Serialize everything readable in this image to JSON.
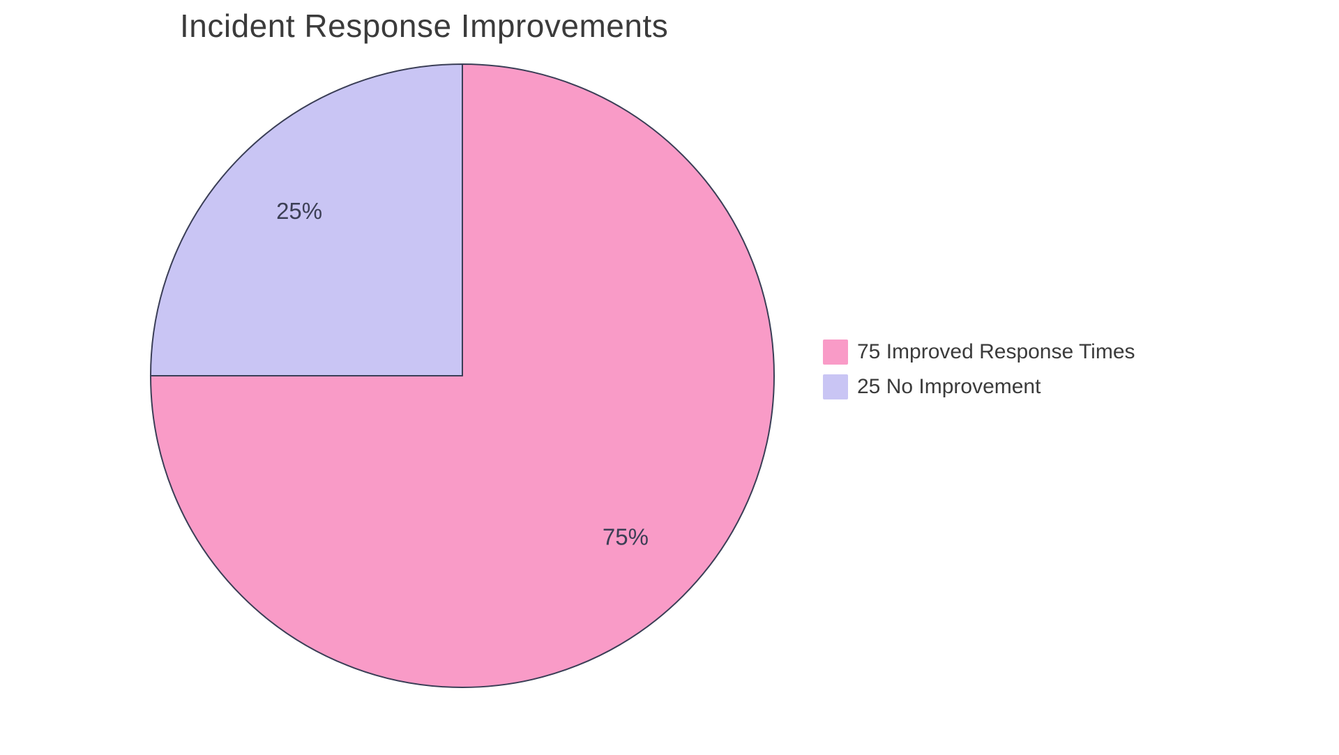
{
  "title": "Incident Response Improvements",
  "chart_data": {
    "type": "pie",
    "title": "Incident Response Improvements",
    "direction": "clockwise",
    "start_angle_deg": 0,
    "legend_position": "right",
    "stroke_color": "#3a3e56",
    "slices": [
      {
        "label": "75 Improved Response Times",
        "value": 75,
        "percent_label": "75%",
        "color": "#f99bc7"
      },
      {
        "label": "25 No Improvement",
        "value": 25,
        "percent_label": "25%",
        "color": "#c9c5f4"
      }
    ]
  },
  "style": {
    "title_color": "#3b3b3b",
    "percent_label_color": "#3c3f55",
    "legend_text_color": "#3b3b3b",
    "background_color": "#ffffff"
  }
}
